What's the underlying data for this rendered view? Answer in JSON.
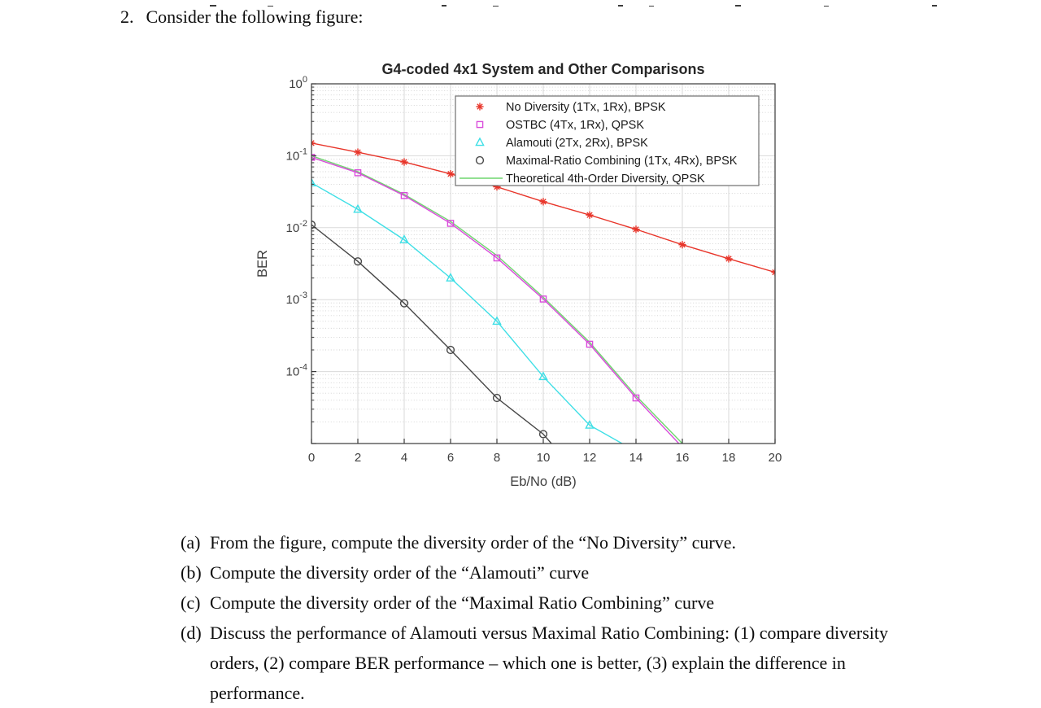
{
  "page": {
    "heading_number": "2.",
    "heading_text": "Consider the following figure:"
  },
  "questions": [
    {
      "label": "(a)",
      "text": "From the figure, compute the diversity order of the “No Diversity” curve."
    },
    {
      "label": "(b)",
      "text": "Compute the diversity order of the “Alamouti” curve"
    },
    {
      "label": "(c)",
      "text": "Compute the diversity order of the “Maximal Ratio Combining” curve"
    },
    {
      "label": "(d)",
      "text": "Discuss the performance of Alamouti versus Maximal Ratio Combining: (1) compare diversity orders, (2) compare BER performance – which one is better, (3) explain the difference in performance."
    }
  ],
  "chart_data": {
    "type": "line",
    "title": "G4-coded 4x1 System and Other Comparisons",
    "xlabel": "Eb/No (dB)",
    "ylabel": "BER",
    "xlim": [
      0,
      20
    ],
    "x_ticks": [
      0,
      2,
      4,
      6,
      8,
      10,
      12,
      14,
      16,
      18,
      20
    ],
    "y_scale": "log",
    "ylim": [
      1e-05,
      1
    ],
    "y_tick_exponents": [
      0,
      -1,
      -2,
      -3,
      -4
    ],
    "grid": "major gridlines + dotted log minor gridlines",
    "legend_position": "upper right inside",
    "axis_color": "#3a3a3a",
    "series": [
      {
        "name": "No Diversity (1Tx, 1Rx), BPSK",
        "marker": "asterisk",
        "color": "#e8352a",
        "x": [
          0,
          2,
          4,
          6,
          8,
          10,
          12,
          14,
          16,
          18,
          20
        ],
        "y": [
          0.15,
          0.112,
          0.082,
          0.056,
          0.037,
          0.023,
          0.015,
          0.0095,
          0.0058,
          0.0037,
          0.0024
        ]
      },
      {
        "name": "OSTBC (4Tx, 1Rx), QPSK",
        "marker": "square",
        "color": "#d94ddb",
        "x": [
          0,
          2,
          4,
          6,
          8,
          10,
          12,
          14
        ],
        "y": [
          0.095,
          0.058,
          0.028,
          0.0115,
          0.0038,
          0.00102,
          0.00024,
          4.3e-05
        ],
        "tail": {
          "x": 15.85,
          "y": 1e-05
        }
      },
      {
        "name": "Alamouti (2Tx, 2Rx), BPSK",
        "marker": "triangle",
        "color": "#3fdfe6",
        "x": [
          0,
          2,
          4,
          6,
          8,
          10,
          12
        ],
        "y": [
          0.042,
          0.018,
          0.0068,
          0.002,
          0.0005,
          8.5e-05,
          1.8e-05
        ],
        "tail": {
          "x": 13.4,
          "y": 1e-05
        }
      },
      {
        "name": "Maximal-Ratio Combining (1Tx, 4Rx), BPSK",
        "marker": "circle",
        "color": "#474747",
        "x": [
          0,
          2,
          4,
          6,
          8,
          10
        ],
        "y": [
          0.011,
          0.0034,
          0.00089,
          0.0002,
          4.3e-05,
          1.35e-05
        ],
        "tail": {
          "x": 10.35,
          "y": 1e-05
        }
      },
      {
        "name": "Theoretical 4th-Order Diversity, QPSK",
        "marker": "none",
        "color": "#6fd66f",
        "x": [
          0,
          2,
          4,
          6,
          8,
          10,
          12,
          14,
          16
        ],
        "y": [
          0.1,
          0.06,
          0.029,
          0.0122,
          0.0041,
          0.00108,
          0.000255,
          4.6e-05,
          1e-05
        ]
      }
    ]
  }
}
